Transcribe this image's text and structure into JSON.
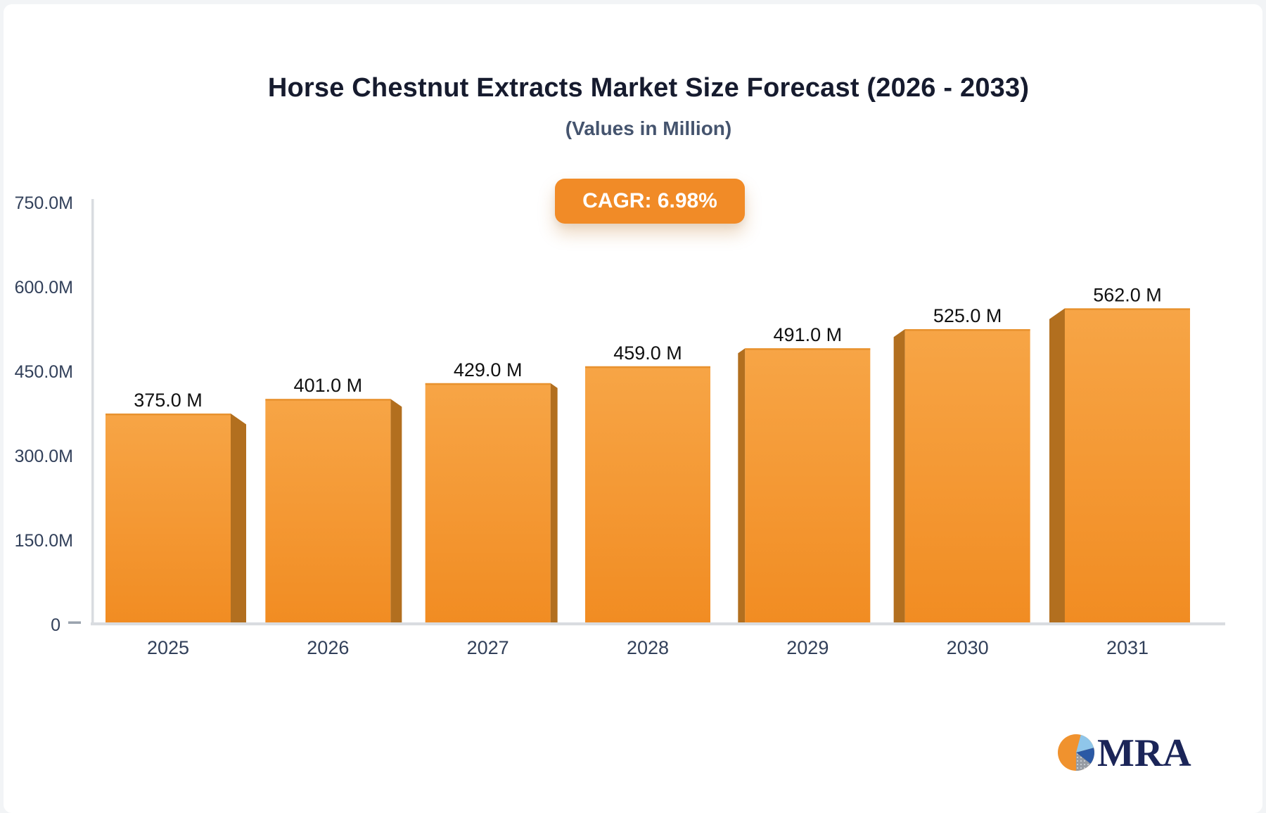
{
  "page": {
    "title": "Horse Chestnut Extracts Market Size Forecast (2026 - 2033)",
    "subtitle": "(Values in Million)",
    "cagr_badge": "CAGR: 6.98%"
  },
  "logo": {
    "text": "MRA"
  },
  "chart_data": {
    "type": "bar",
    "title": "Horse Chestnut Extracts Market Size Forecast (2026 - 2033)",
    "subtitle": "(Values in Million)",
    "annotation": "CAGR: 6.98%",
    "unit": "Million",
    "categories": [
      "2025",
      "2026",
      "2027",
      "2028",
      "2029",
      "2030",
      "2031"
    ],
    "values": [
      375,
      401,
      429,
      459,
      491,
      525,
      562
    ],
    "value_labels": [
      "375.0 M",
      "401.0 M",
      "429.0 M",
      "459.0 M",
      "491.0 M",
      "525.0 M",
      "562.0 M"
    ],
    "y_ticks": [
      {
        "label": "0",
        "value": 0
      },
      {
        "label": "150.0M",
        "value": 150
      },
      {
        "label": "300.0M",
        "value": 300
      },
      {
        "label": "450.0M",
        "value": 450
      },
      {
        "label": "600.0M",
        "value": 600
      },
      {
        "label": "750.0M",
        "value": 750
      }
    ],
    "ylim": [
      0,
      750
    ],
    "grid": false,
    "legend": "none",
    "colors": {
      "bar_top": "#F7A546",
      "bar_bottom": "#F18C22",
      "bar_side": "#B26F1F",
      "bar_top_edge": "#DD851F",
      "axis": "#D9DCE0",
      "tick_dash": "#9AA3AE",
      "tick_label": "#32405A",
      "value_label": "#101010",
      "badge_bg": "#F18B27",
      "badge_text": "#FFFFFF",
      "logo_orange": "#F0922E",
      "logo_lightblue": "#8FC6EA",
      "logo_blue": "#2B59A5",
      "logo_gray": "#979CA3",
      "logo_text": "#1B2558"
    }
  }
}
